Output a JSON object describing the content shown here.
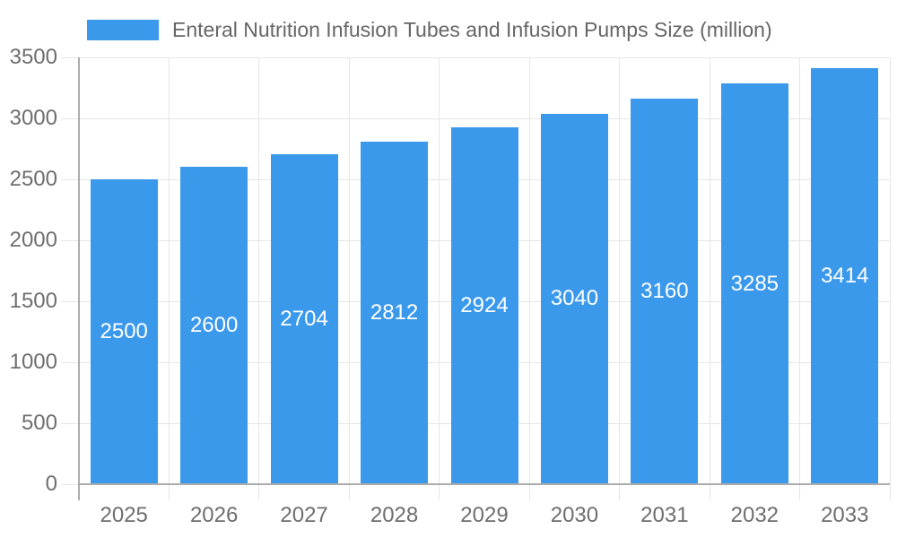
{
  "legend": {
    "label": "Enteral Nutrition Infusion Tubes and Infusion Pumps Size (million)"
  },
  "chart_data": {
    "type": "bar",
    "title": "Enteral Nutrition Infusion Tubes and Infusion Pumps Size (million)",
    "categories": [
      "2025",
      "2026",
      "2027",
      "2028",
      "2029",
      "2030",
      "2031",
      "2032",
      "2033"
    ],
    "values": [
      2500,
      2600,
      2704,
      2812,
      2924,
      3040,
      3160,
      3285,
      3414
    ],
    "series": [
      {
        "name": "Enteral Nutrition Infusion Tubes and Infusion Pumps Size (million)",
        "values": [
          2500,
          2600,
          2704,
          2812,
          2924,
          3040,
          3160,
          3285,
          3414
        ]
      }
    ],
    "xlabel": "",
    "ylabel": "",
    "ylim": [
      0,
      3500
    ],
    "ytick_step": 500,
    "yticks": [
      0,
      500,
      1000,
      1500,
      2000,
      2500,
      3000,
      3500
    ],
    "grid": true,
    "legend_position": "top-left",
    "bar_labels_inside": true,
    "colors": {
      "bar": "#3B99EC",
      "bar_label": "#FFFFFF",
      "axis_text": "#6E6E6E",
      "legend_text": "#666666",
      "gridline": "#E6E6E6",
      "axis_line": "#ACACAC",
      "background": "#FFFFFF"
    }
  }
}
